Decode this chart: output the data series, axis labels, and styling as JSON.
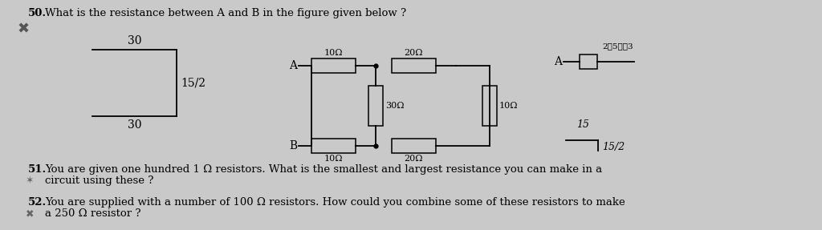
{
  "bg_color": "#c9c9c9",
  "title_text": "What is the resistance between A and B in the figure given below ?",
  "q51_line1": "You are given one hundred 1 Ω resistors. What is the smallest and largest resistance you can make in a",
  "q51_line2": "circuit using these ?",
  "q52_line1": "You are supplied with a number of 100 Ω resistors. How could you combine some of these resistors to make",
  "q52_line2": "a 250 Ω resistor ?",
  "lw": 1.3,
  "font_size": 9.5,
  "font_size_small": 8.0,
  "font_size_label": 9.0
}
